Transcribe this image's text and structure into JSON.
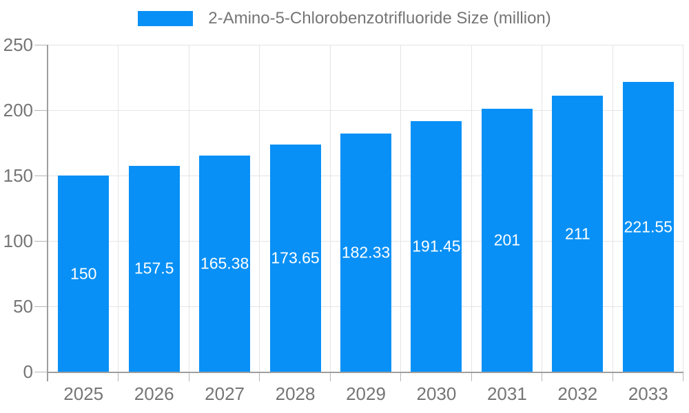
{
  "legend": {
    "label": "2-Amino-5-Chlorobenzotrifluoride Size (million)"
  },
  "chart_data": {
    "type": "bar",
    "title": "2-Amino-5-Chlorobenzotrifluoride Size (million)",
    "categories": [
      "2025",
      "2026",
      "2027",
      "2028",
      "2029",
      "2030",
      "2031",
      "2032",
      "2033"
    ],
    "values": [
      150,
      157.5,
      165.38,
      173.65,
      182.33,
      191.45,
      201,
      211,
      221.55
    ],
    "value_labels": [
      "150",
      "157.5",
      "165.38",
      "173.65",
      "182.33",
      "191.45",
      "201",
      "211",
      "221.55"
    ],
    "xlabel": "",
    "ylabel": "",
    "ylim": [
      0,
      250
    ],
    "yticks": [
      0,
      50,
      100,
      150,
      200,
      250
    ],
    "grid": true,
    "legend_position": "top",
    "bar_label_position": "center",
    "colors": {
      "bar": "#0890f6",
      "grid": "#e4e4e4",
      "axis": "#9e9e9e",
      "tick": "#b5b5b5",
      "text": "#757575",
      "bar_label": "#ffffff"
    }
  }
}
